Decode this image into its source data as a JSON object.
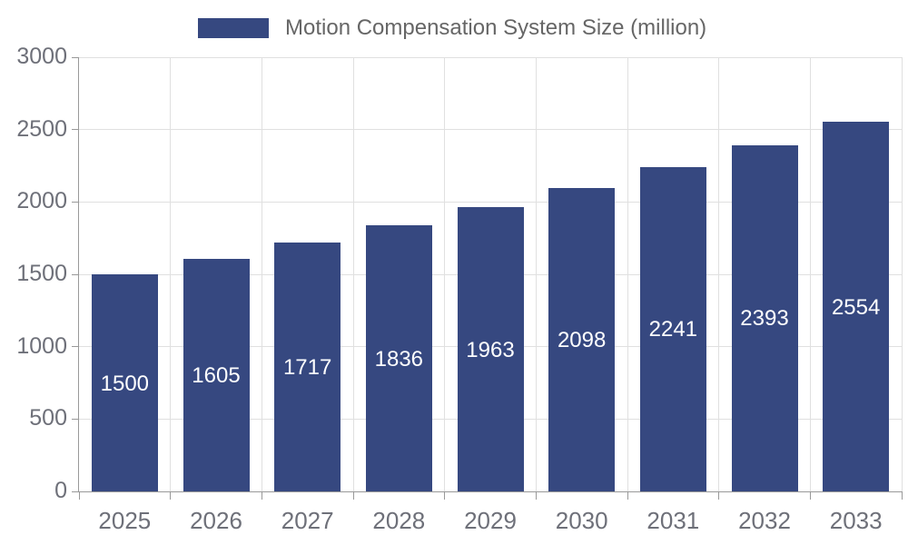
{
  "chart_data": {
    "type": "bar",
    "title": "Motion Compensation System Size (million)",
    "legend": [
      "Motion Compensation System Size (million)"
    ],
    "legend_position": "top",
    "categories": [
      "2025",
      "2026",
      "2027",
      "2028",
      "2029",
      "2030",
      "2031",
      "2032",
      "2033"
    ],
    "values": [
      1500,
      1605,
      1717,
      1836,
      1963,
      2098,
      2241,
      2393,
      2554
    ],
    "value_labels": [
      "1500",
      "1605",
      "1717",
      "1836",
      "1963",
      "2098",
      "2241",
      "2393",
      "2554"
    ],
    "xlabel": "",
    "ylabel": "",
    "ylim": [
      0,
      3000
    ],
    "yticks": [
      0,
      500,
      1000,
      1500,
      2000,
      2500,
      3000
    ],
    "ytick_labels": [
      "0",
      "500",
      "1000",
      "1500",
      "2000",
      "2500",
      "3000"
    ],
    "grid": true,
    "colors": {
      "bar": "#364880",
      "value_label": "#ffffff",
      "axis_label": "#6e7079",
      "legend_text": "#666666",
      "grid_line": "#e0e0e0",
      "axis_line": "#999999",
      "background": "#ffffff"
    }
  }
}
